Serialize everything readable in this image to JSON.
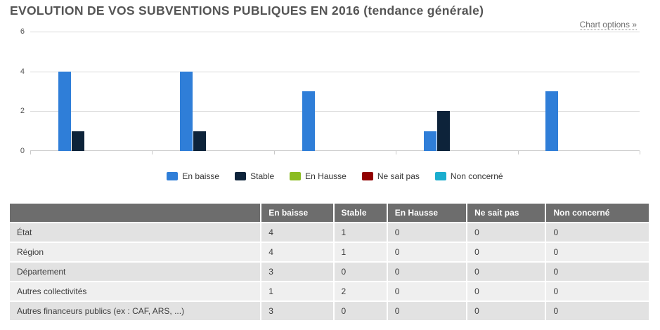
{
  "header": {
    "title": "EVOLUTION DE VOS SUBVENTIONS PUBLIQUES EN 2016 (tendance générale)",
    "chart_options_label": "Chart options »"
  },
  "chart_data": {
    "type": "bar",
    "title": "EVOLUTION DE VOS SUBVENTIONS PUBLIQUES EN 2016 (tendance générale)",
    "categories": [
      "État",
      "Région",
      "Département",
      "Autres collectivités",
      "Autres financeurs publics (ex : CAF, ARS, ...)"
    ],
    "series": [
      {
        "name": "En baisse",
        "color": "#2f7ed8",
        "values": [
          4,
          4,
          3,
          1,
          3
        ]
      },
      {
        "name": "Stable",
        "color": "#0d233a",
        "values": [
          1,
          1,
          0,
          2,
          0
        ]
      },
      {
        "name": "En Hausse",
        "color": "#8bbc21",
        "values": [
          0,
          0,
          0,
          0,
          0
        ]
      },
      {
        "name": "Ne sait pas",
        "color": "#910000",
        "values": [
          0,
          0,
          0,
          0,
          0
        ]
      },
      {
        "name": "Non concerné",
        "color": "#1aadce",
        "values": [
          0,
          0,
          0,
          0,
          0
        ]
      }
    ],
    "xlabel": "",
    "ylabel": "",
    "ylim": [
      0,
      6
    ],
    "yticks": [
      0,
      2,
      4,
      6
    ],
    "grid": true,
    "legend_position": "bottom",
    "x_category_labels_hidden": true
  },
  "table": {
    "columns": [
      "",
      "En baisse",
      "Stable",
      "En Hausse",
      "Ne sait pas",
      "Non concerné"
    ],
    "rows": [
      {
        "label": "État",
        "values": [
          4,
          1,
          0,
          0,
          0
        ]
      },
      {
        "label": "Région",
        "values": [
          4,
          1,
          0,
          0,
          0
        ]
      },
      {
        "label": "Département",
        "values": [
          3,
          0,
          0,
          0,
          0
        ]
      },
      {
        "label": "Autres collectivités",
        "values": [
          1,
          2,
          0,
          0,
          0
        ]
      },
      {
        "label": "Autres financeurs publics (ex : CAF, ARS, ...)",
        "values": [
          3,
          0,
          0,
          0,
          0
        ]
      }
    ]
  },
  "colors": {
    "title_text": "#555555",
    "link_text": "#6f6f6f",
    "gridline": "#d9d9d9",
    "axis_label": "#555555",
    "legend_text": "#333333",
    "table_header_bg": "#6d6d6d",
    "table_header_text": "#ffffff",
    "table_row_odd_bg": "#e2e2e2",
    "table_row_even_bg": "#efefef"
  }
}
